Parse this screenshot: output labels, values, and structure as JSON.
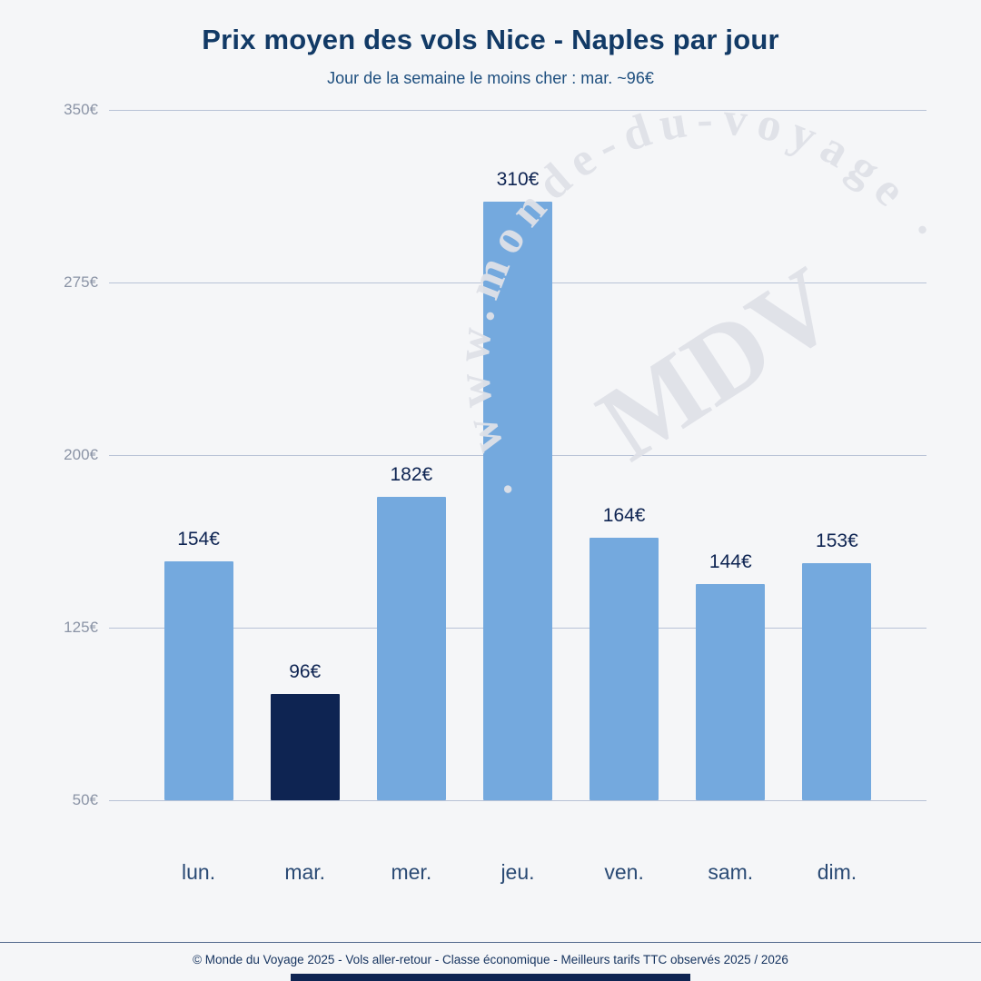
{
  "header": {
    "title": "Prix moyen des vols Nice - Naples par jour",
    "subtitle": "Jour de la semaine le moins cher : mar. ~96€"
  },
  "chart_data": {
    "type": "bar",
    "title": "Prix moyen des vols Nice - Naples par jour",
    "subtitle": "Jour de la semaine le moins cher : mar. ~96€",
    "categories": [
      "lun.",
      "mar.",
      "mer.",
      "jeu.",
      "ven.",
      "sam.",
      "dim."
    ],
    "values": [
      154,
      96,
      182,
      310,
      164,
      144,
      153
    ],
    "value_labels": [
      "154€",
      "96€",
      "182€",
      "310€",
      "164€",
      "144€",
      "153€"
    ],
    "ylim": [
      50,
      350
    ],
    "yticks": [
      50,
      125,
      200,
      275,
      350
    ],
    "ytick_labels": [
      "50€",
      "125€",
      "200€",
      "275€",
      "350€"
    ],
    "xlabel": "",
    "ylabel": "",
    "grid": true,
    "legend": false,
    "bar_color": "#74a9de",
    "highlight_color": "#0e2452",
    "highlight_index": 1
  },
  "watermark": {
    "circle_text": "· www.monde-du-voyage ·",
    "center_text": "MDV"
  },
  "footer": {
    "text": "© Monde du Voyage 2025 - Vols aller-retour - Classe économique - Meilleurs tarifs TTC observés 2025 / 2026"
  }
}
